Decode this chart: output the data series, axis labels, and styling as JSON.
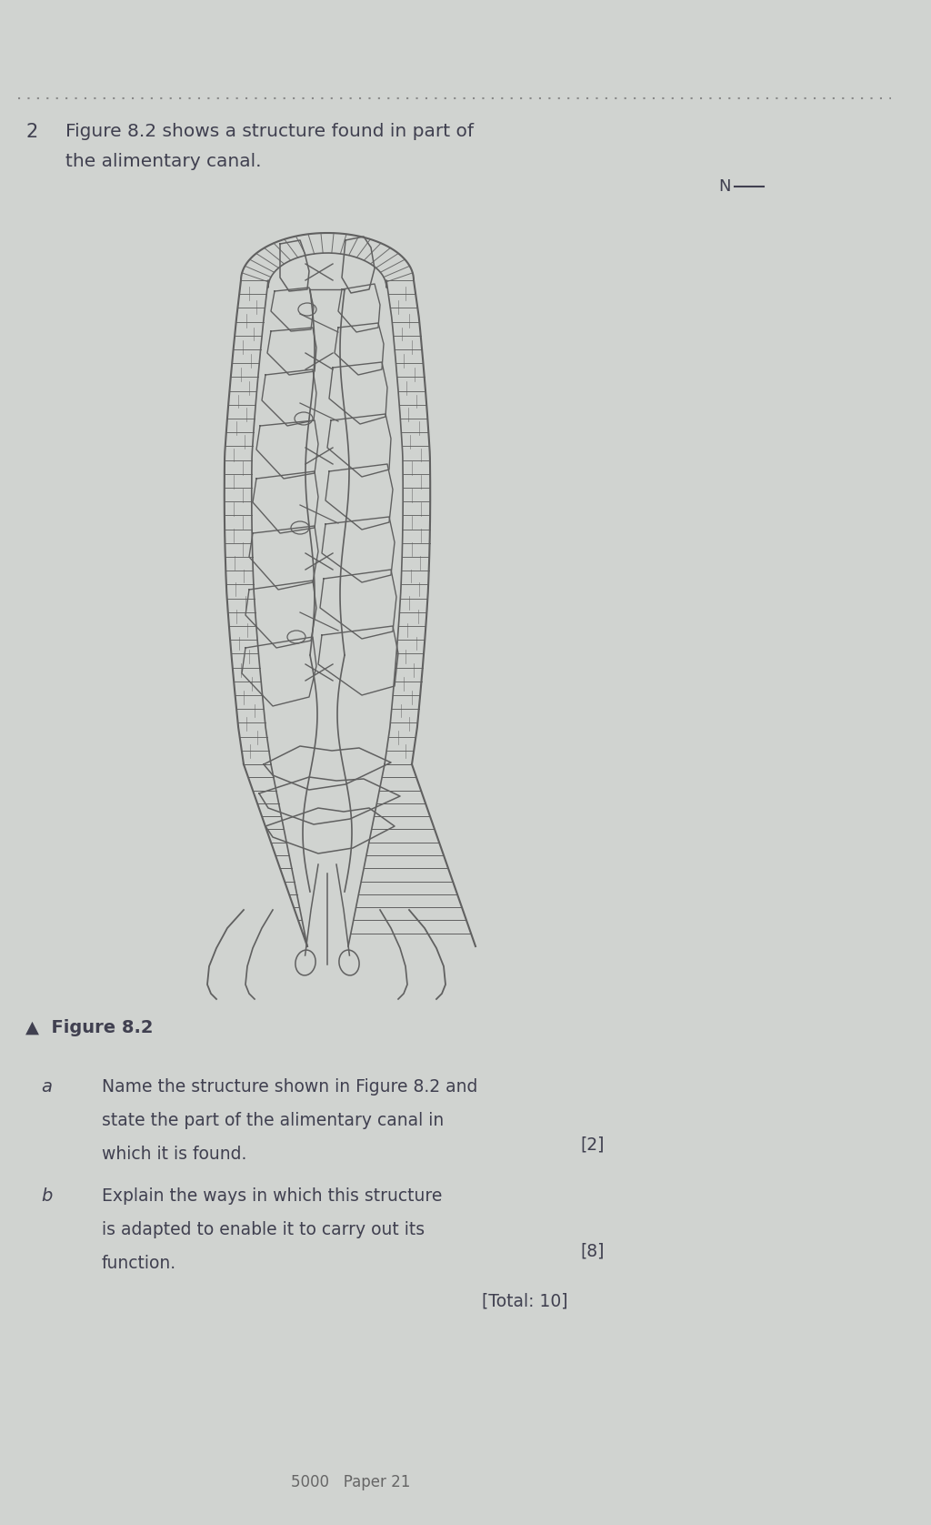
{
  "bg_color": "#d0d3d0",
  "question_number": "2",
  "question_text_line1": "Figure 8.2 shows a structure found in part of",
  "question_text_line2": "the alimentary canal.",
  "figure_label": "▲  Figure 8.2",
  "part_a_label": "a",
  "part_a_text_line1": "Name the structure shown in Figure 8.2 and",
  "part_a_text_line2": "state the part of the alimentary canal in",
  "part_a_text_line3": "which it is found.",
  "part_a_marks": "[2]",
  "part_b_label": "b",
  "part_b_text_line1": "Explain the ways in which this structure",
  "part_b_text_line2": "is adapted to enable it to carry out its",
  "part_b_text_line3": "function.",
  "part_b_marks": "[8]",
  "total_marks": "[Total: 10]",
  "footer": "5000   Paper 21",
  "line_color": "#606060",
  "text_color": "#404050"
}
